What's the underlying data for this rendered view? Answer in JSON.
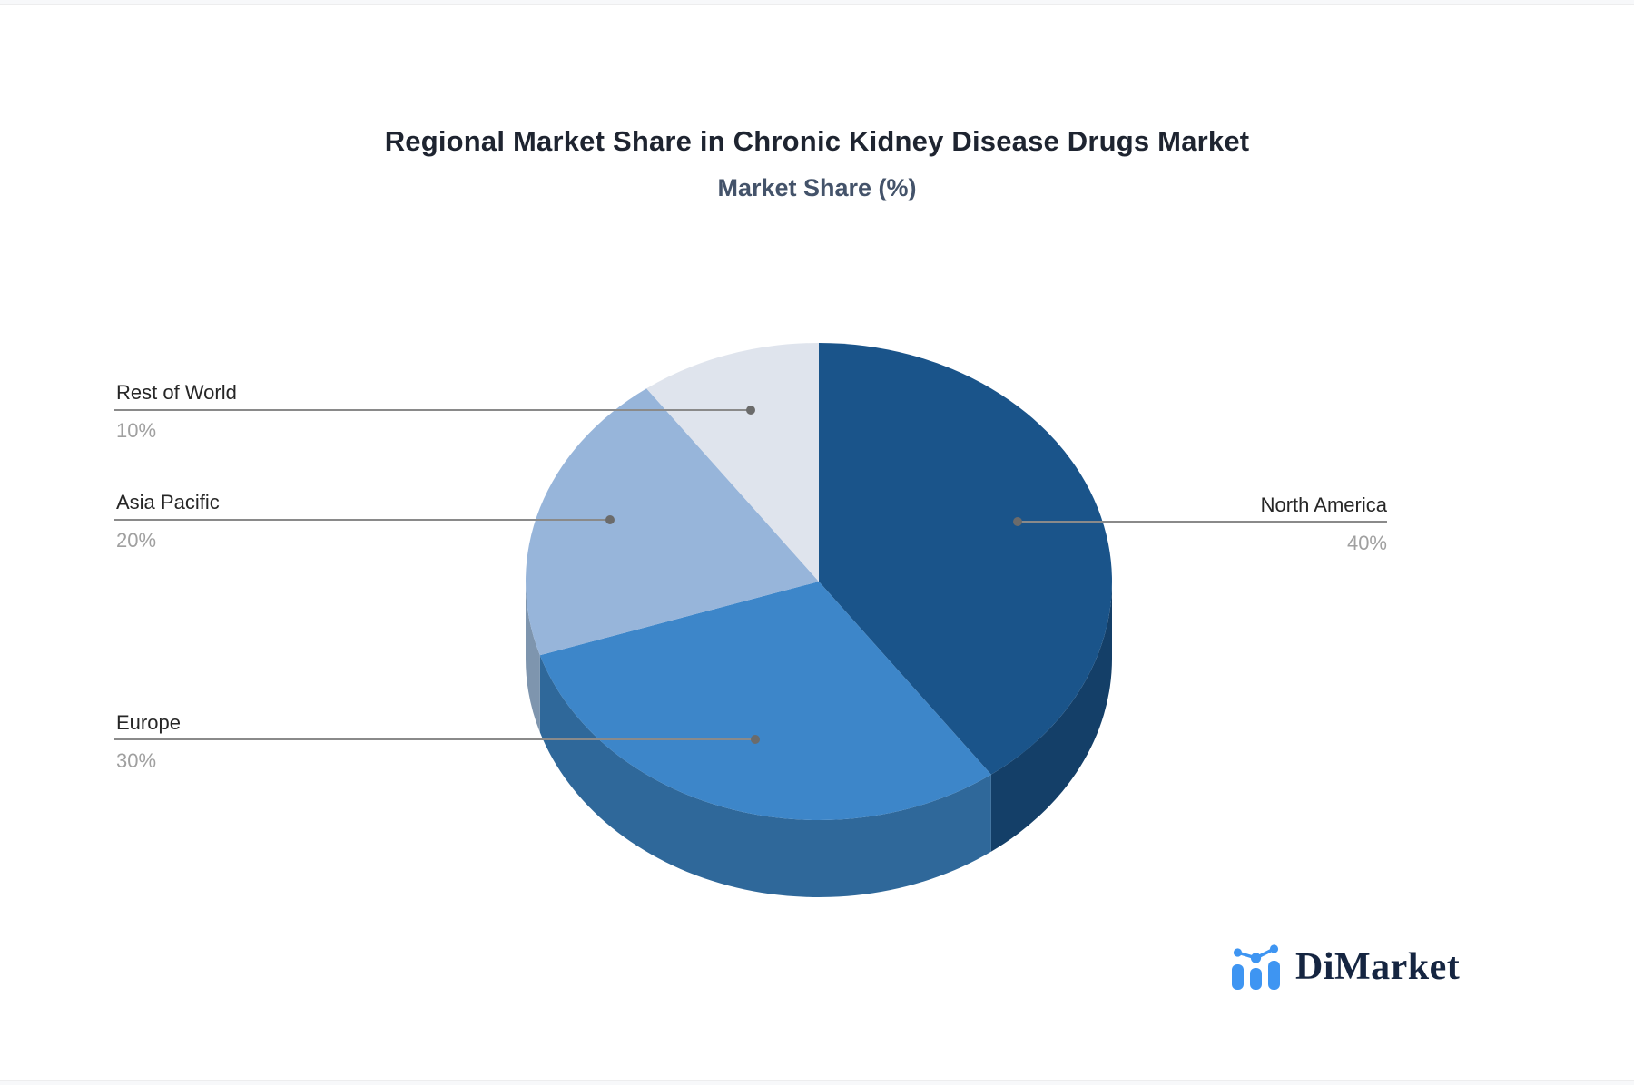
{
  "page": {
    "background": "#ffffff",
    "edge_strip_color": "#f7f8fa"
  },
  "chart_data": {
    "type": "pie",
    "style": "3d",
    "title": "Regional Market Share in Chronic Kidney Disease Drugs Market",
    "subtitle": "Market Share (%)",
    "unit": "percent",
    "start_angle": "12-oclock",
    "direction": "clockwise",
    "legend_position": "none",
    "label_style": "leader-lines",
    "total": 100,
    "slices": [
      {
        "label": "North America",
        "value": 40,
        "display_value": "40%",
        "color": "#1a548a",
        "side_color": "#143f68"
      },
      {
        "label": "Europe",
        "value": 30,
        "display_value": "30%",
        "color": "#3d86c9",
        "side_color": "#2f689a"
      },
      {
        "label": "Asia Pacific",
        "value": 20,
        "display_value": "20%",
        "color": "#97b5da",
        "side_color": "#7e95ae"
      },
      {
        "label": "Rest of World",
        "value": 10,
        "display_value": "10%",
        "color": "#dfe4ed",
        "side_color": "#c3cbd8"
      }
    ]
  },
  "branding": {
    "name": "DiMarket",
    "icon": "bar-line-chart-icon",
    "text_color": "#152541",
    "icon_color": "#3e95f2"
  },
  "styles": {
    "leader_line_color": "#8a8a8a",
    "leader_dot_color": "#6b6b6b",
    "label_color": "#262626",
    "value_color": "#a0a0a0",
    "title_color": "#1e2430",
    "subtitle_color": "#44536a"
  }
}
